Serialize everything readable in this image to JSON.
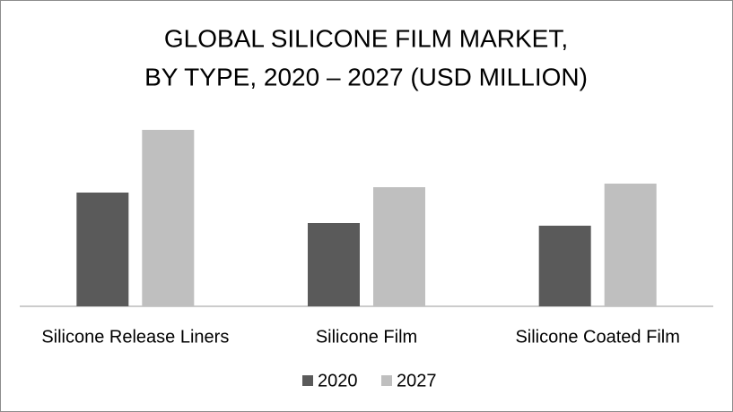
{
  "chart_data": {
    "type": "bar",
    "title": [
      "GLOBAL SILICONE FILM  MARKET,",
      "BY TYPE, 2020 – 2027 (USD MILLION)"
    ],
    "categories": [
      "Silicone Release Liners",
      "Silicone Film",
      "Silicone Coated Film"
    ],
    "series": [
      {
        "name": "2020",
        "color": "#5a5a5a",
        "values": [
          127,
          93,
          90
        ]
      },
      {
        "name": "2027",
        "color": "#bfbfbf",
        "values": [
          197,
          133,
          137
        ]
      }
    ],
    "ylim": [
      0,
      200
    ]
  }
}
